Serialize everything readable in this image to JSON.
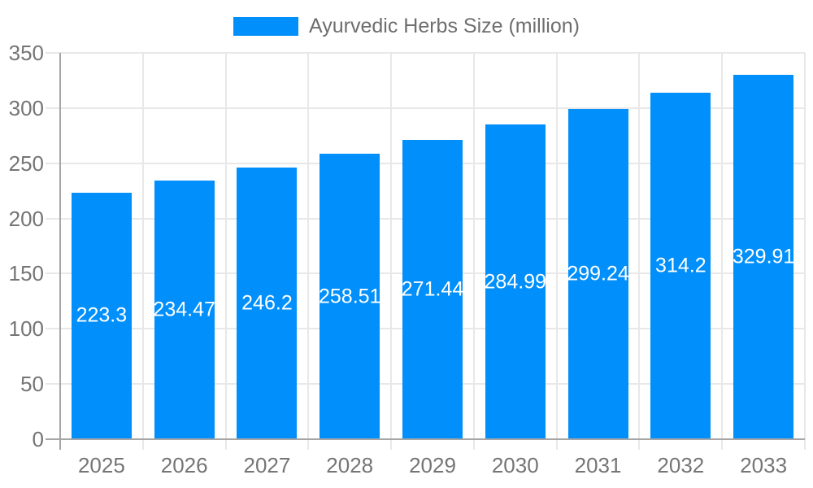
{
  "legend": {
    "label": "Ayurvedic Herbs Size (million)"
  },
  "chart_data": {
    "type": "bar",
    "categories": [
      "2025",
      "2026",
      "2027",
      "2028",
      "2029",
      "2030",
      "2031",
      "2032",
      "2033"
    ],
    "values": [
      223.3,
      234.47,
      246.2,
      258.51,
      271.44,
      284.99,
      299.24,
      314.2,
      329.91
    ],
    "series_name": "Ayurvedic Herbs Size (million)",
    "title": "",
    "xlabel": "",
    "ylabel": "",
    "ylim": [
      0,
      350
    ],
    "yticks": [
      0,
      50,
      100,
      150,
      200,
      250,
      300,
      350
    ],
    "grid": true,
    "legend_position": "top",
    "bar_color": "#008FFB",
    "bar_label_color": "#FFFFFF",
    "axis_text_color": "#757575",
    "grid_color": "#E8E8E8",
    "axis_line_color": "#A6A6A6"
  }
}
